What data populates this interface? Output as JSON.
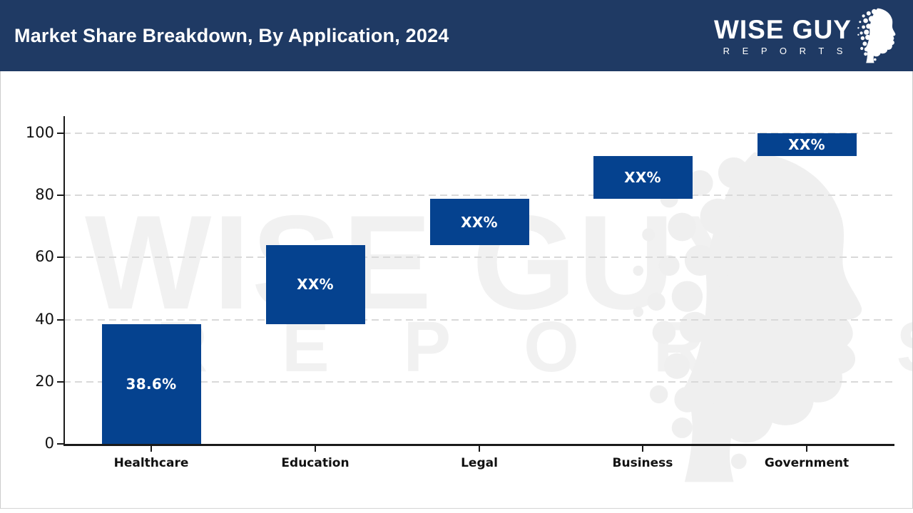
{
  "header": {
    "title": "Market Share Breakdown, By Application, 2024",
    "logo": {
      "wordmark": "WISE GUY",
      "sub": "R E P O R T S"
    }
  },
  "watermark": {
    "line1": "WISE GUY",
    "line2": "R E P O R T S"
  },
  "chart_data": {
    "type": "bar",
    "subtype": "waterfall",
    "title": "Market Share Breakdown, By Application, 2024",
    "categories": [
      "Healthcare",
      "Education",
      "Legal",
      "Business",
      "Government"
    ],
    "segments": [
      {
        "category": "Healthcare",
        "label": "38.6%",
        "start": 0,
        "end": 38.6
      },
      {
        "category": "Education",
        "label": "XX%",
        "start": 38.6,
        "end": 64.0
      },
      {
        "category": "Legal",
        "label": "XX%",
        "start": 64.0,
        "end": 78.8
      },
      {
        "category": "Business",
        "label": "XX%",
        "start": 78.8,
        "end": 92.6
      },
      {
        "category": "Government",
        "label": "XX%",
        "start": 92.6,
        "end": 100.0
      }
    ],
    "y_ticks": [
      0,
      20,
      40,
      60,
      80,
      100
    ],
    "ylim": [
      0,
      105
    ],
    "xlabel": "",
    "ylabel": "",
    "grid": "horizontal-dashed",
    "legend": "none",
    "bar_color": "#05428F",
    "bar_label_color": "#FFFFFF"
  },
  "colors": {
    "header_bg": "#1F3A64",
    "bar": "#05428F",
    "grid": "#D9D9D9",
    "axis": "#1A1A1A",
    "watermark": "#F1F1F1"
  }
}
